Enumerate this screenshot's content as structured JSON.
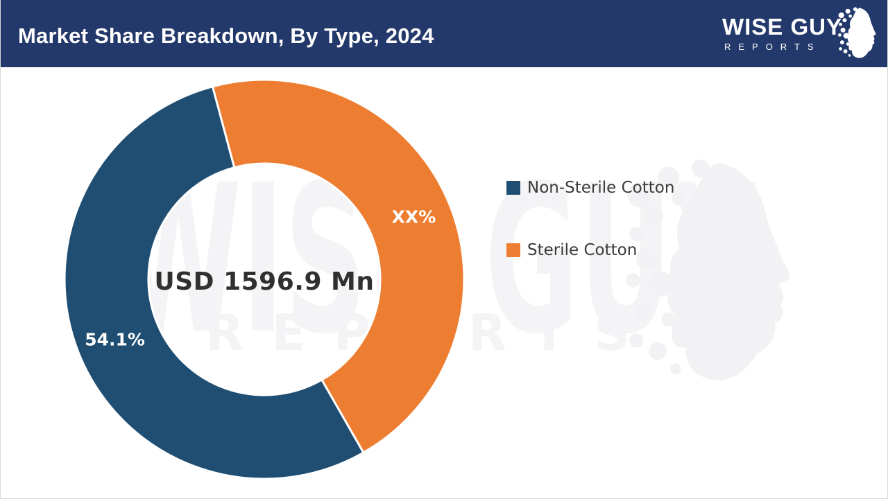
{
  "header": {
    "title": "Market Share Breakdown, By Type, 2024",
    "brand": {
      "line1": "WISE GUY",
      "line2": "REPORTS"
    }
  },
  "watermark": {
    "line1": "WISE GUY",
    "line2": "REPORTS"
  },
  "chart_data": {
    "type": "pie",
    "subtype": "donut",
    "title": "Market Share Breakdown, By Type, 2024",
    "categories": [
      "Non-Sterile Cotton",
      "Sterile Cotton"
    ],
    "values": [
      54.1,
      45.9
    ],
    "displayed_labels": [
      "54.1%",
      "XX%"
    ],
    "colors": [
      "#1f4e72",
      "#ed7d31"
    ],
    "center_label": "USD 1596.9 Mn",
    "legend_position": "right",
    "start_angle_deg": 105,
    "direction": "counterclockwise",
    "inner_radius_ratio": 0.58,
    "gap_stroke_color": "#ffffff"
  },
  "colors": {
    "header_bg": "#24396b",
    "title_text": "#ffffff",
    "center_text": "#303030",
    "legend_text": "#3a3a3a",
    "watermark": "#f4f4f6",
    "page_border": "#d9d9d9",
    "background": "#ffffff"
  }
}
